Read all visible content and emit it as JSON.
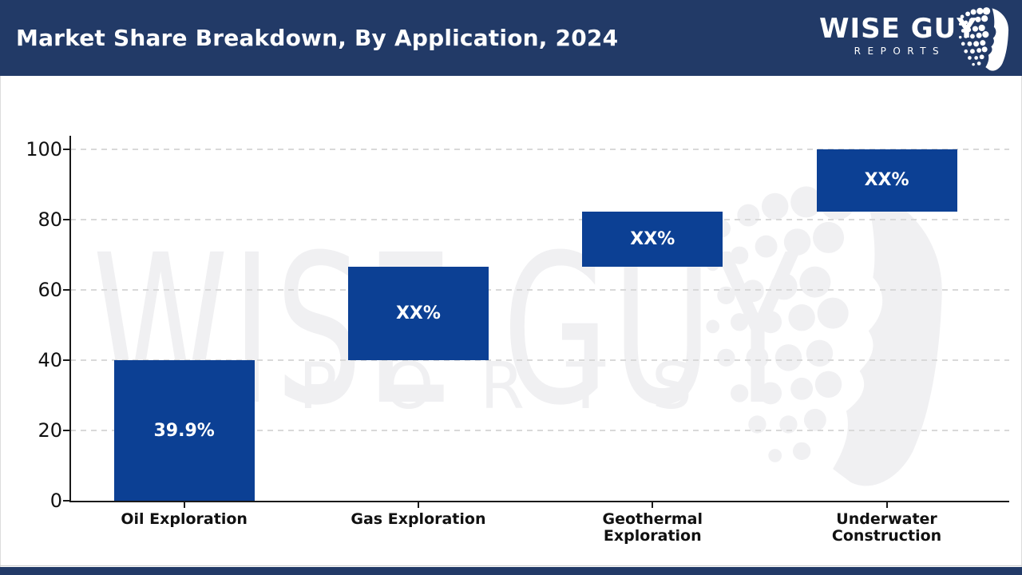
{
  "header": {
    "title": "Market Share Breakdown, By Application, 2024",
    "brand": {
      "line1": "WISE GUY",
      "line2": "REPORTS"
    }
  },
  "watermark": {
    "line1": "WISE GUY",
    "line2": "REPORTS"
  },
  "colors": {
    "header_bg": "#223a67",
    "footer_bg": "#223a67",
    "bar_fill": "#0c4094",
    "bar_label_text": "#ffffff",
    "gridline": "#d9d9d9",
    "axis": "#1a1a1a",
    "watermark": "#f0f0f2"
  },
  "chart_data": {
    "type": "bar",
    "subtype": "waterfall",
    "title": "Market Share Breakdown, By Application, 2024",
    "categories": [
      "Oil Exploration",
      "Gas Exploration",
      "Geothermal Exploration",
      "Underwater Construction"
    ],
    "categories_display": [
      "Oil Exploration",
      "Gas Exploration",
      "Geothermal\nExploration",
      "Underwater\nConstruction"
    ],
    "segments": [
      {
        "category": "Oil Exploration",
        "start": 0,
        "end": 39.9,
        "label": "39.9%"
      },
      {
        "category": "Gas Exploration",
        "start": 39.9,
        "end": 66.6,
        "label": "XX%"
      },
      {
        "category": "Geothermal Exploration",
        "start": 66.6,
        "end": 82.3,
        "label": "XX%"
      },
      {
        "category": "Underwater Construction",
        "start": 82.3,
        "end": 100,
        "label": "XX%"
      }
    ],
    "yticks": [
      0,
      20,
      40,
      60,
      80,
      100
    ],
    "ylim": [
      0,
      104
    ],
    "xlabel": "",
    "ylabel": "",
    "grid": "horizontal-dashed",
    "legend_position": "none"
  }
}
